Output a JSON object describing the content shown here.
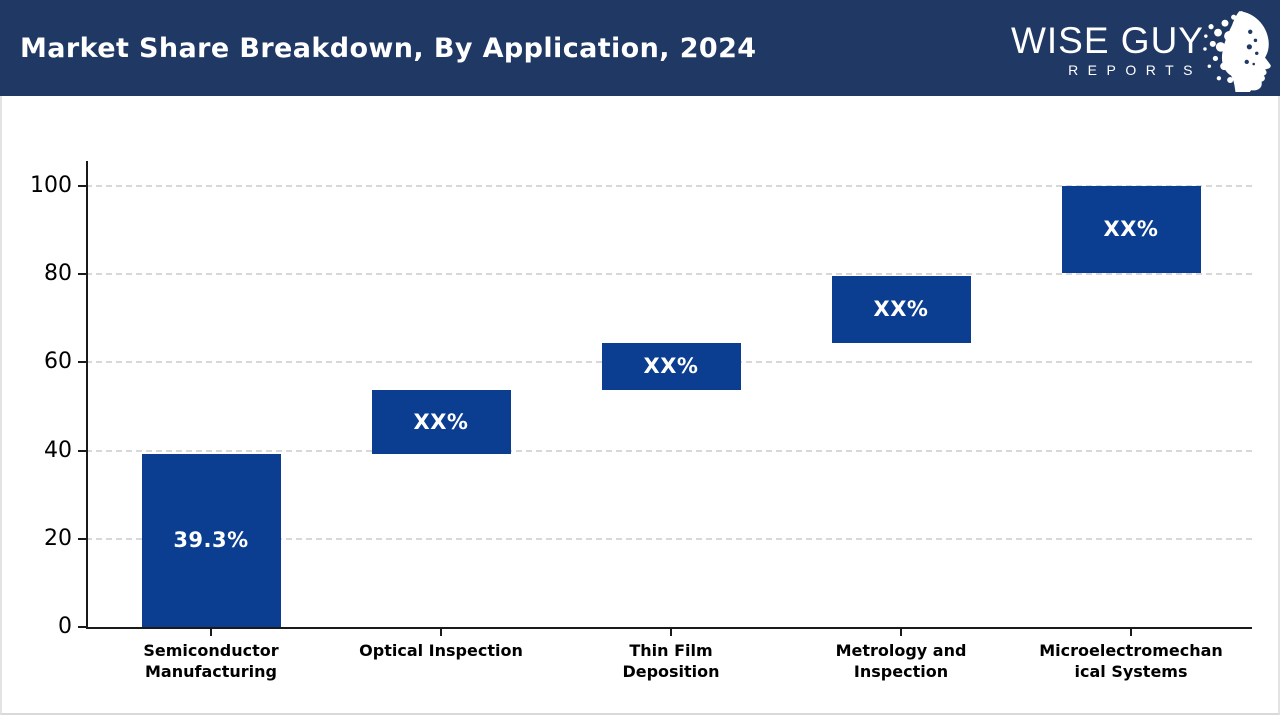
{
  "header": {
    "title": "Market Share Breakdown, By Application, 2024",
    "logo": {
      "line1": "WISE GUY",
      "line2": "REPORTS"
    }
  },
  "watermark": {
    "line1": "WISE GUY",
    "line2": "REPORTS"
  },
  "colors": {
    "header_bg": "#1f3864",
    "bar": "#0b3d91",
    "bar_label": "#ffffff",
    "grid": "#d8d8d8",
    "axis": "#1a1a1a",
    "watermark": "#f2f2f2"
  },
  "chart_data": {
    "type": "bar",
    "subtype": "waterfall",
    "title": "Market Share Breakdown, By Application, 2024",
    "categories": [
      "Semiconductor Manufacturing",
      "Optical Inspection",
      "Thin Film Deposition",
      "Metrology and Inspection",
      "Microelectromechanical Systems"
    ],
    "category_label_lines": [
      [
        "Semiconductor",
        "Manufacturing"
      ],
      [
        "Optical Inspection"
      ],
      [
        "Thin Film",
        "Deposition"
      ],
      [
        "Metrology and",
        "Inspection"
      ],
      [
        "Microelectromechan",
        "ical Systems"
      ]
    ],
    "segments": [
      {
        "category": "Semiconductor Manufacturing",
        "from": 0,
        "to": 39.3,
        "label": "39.3%"
      },
      {
        "category": "Optical Inspection",
        "from": 39.3,
        "to": 53.8,
        "label": "XX%"
      },
      {
        "category": "Thin Film Deposition",
        "from": 53.8,
        "to": 64.4,
        "label": "XX%"
      },
      {
        "category": "Metrology and Inspection",
        "from": 64.4,
        "to": 79.6,
        "label": "XX%"
      },
      {
        "category": "Microelectromechanical Systems",
        "from": 80.3,
        "to": 100,
        "label": "XX%"
      }
    ],
    "xlabel": "",
    "ylabel": "",
    "ylim": [
      0,
      100
    ],
    "yticks": [
      0,
      20,
      40,
      60,
      80,
      100
    ],
    "grid": "horizontal-dashed",
    "legend": "none"
  }
}
